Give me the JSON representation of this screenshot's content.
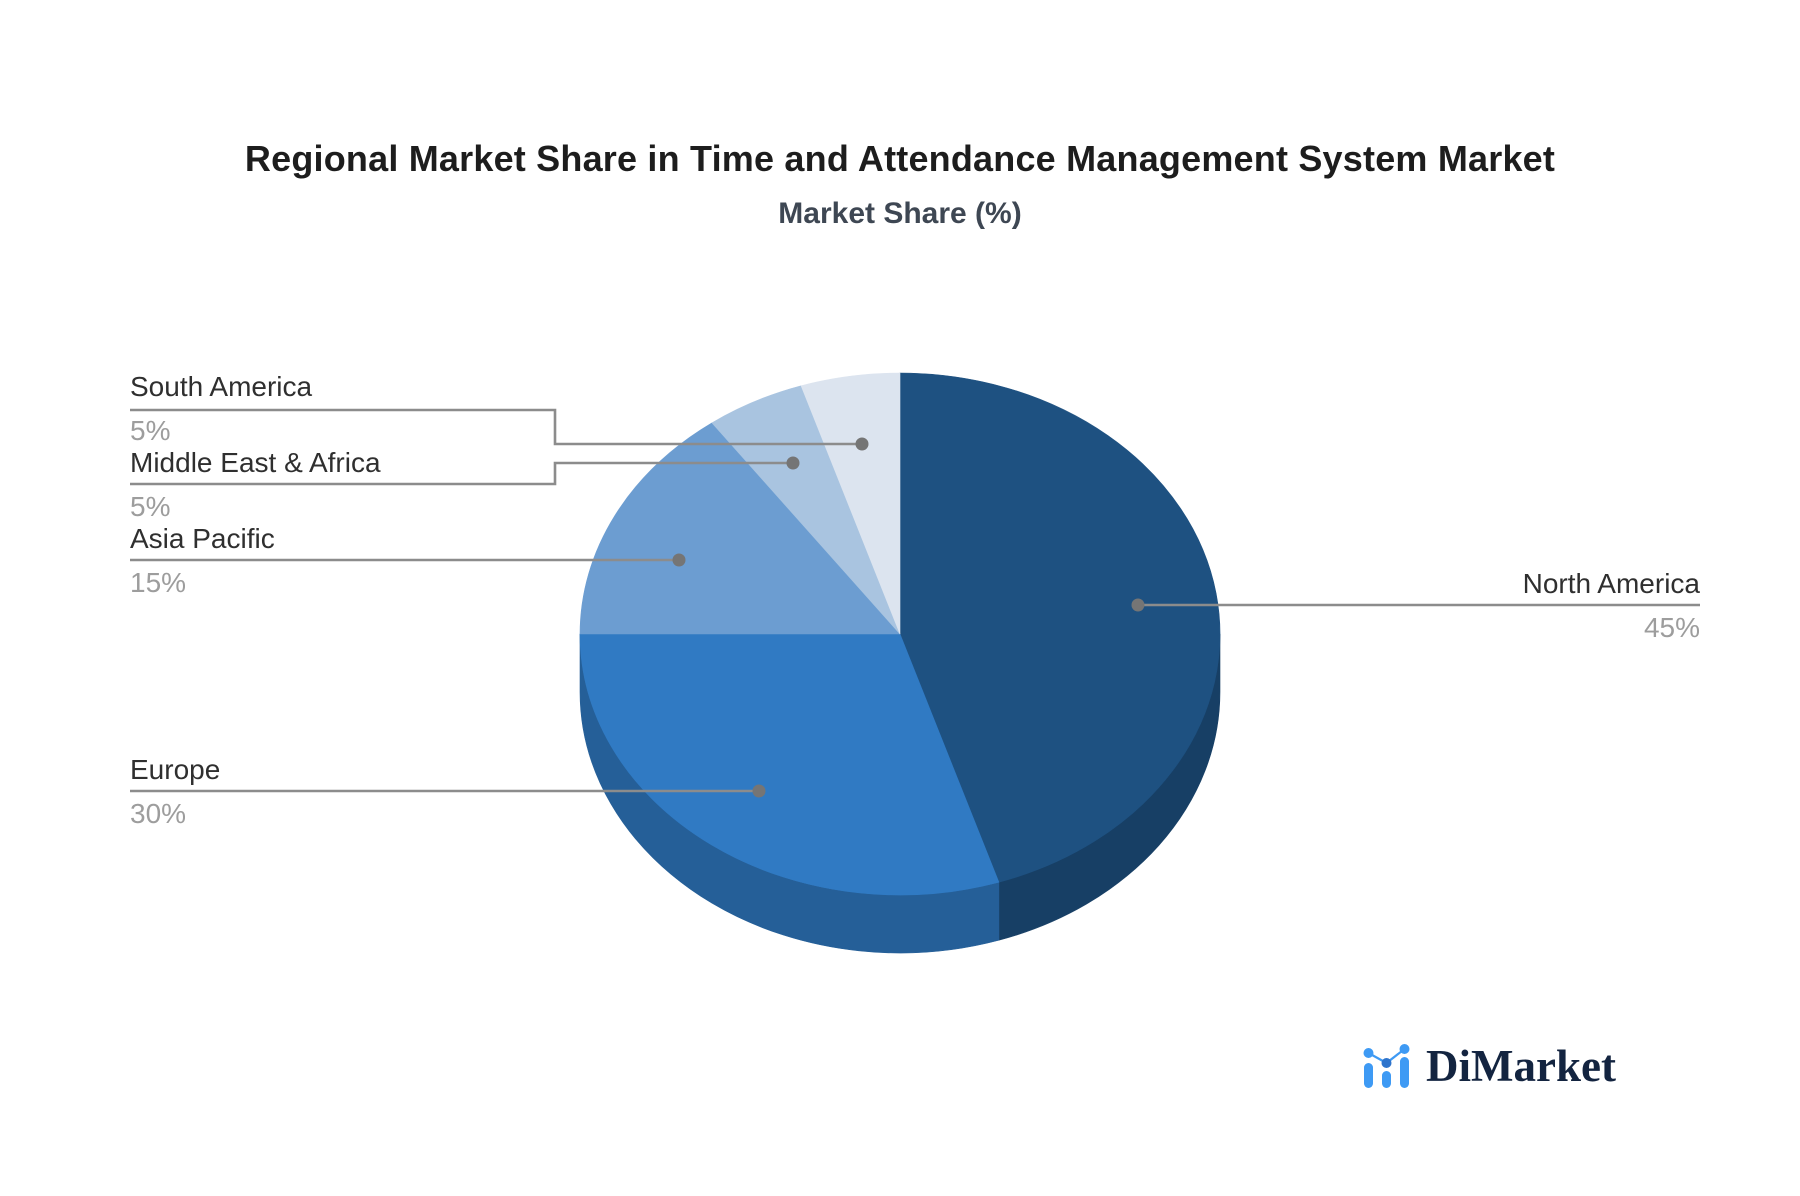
{
  "title": "Regional Market Share in Time and Attendance Management System Market",
  "subtitle": "Market Share (%)",
  "watermark": {
    "brand": "DiMarket",
    "icon": "bar-line-chart-icon"
  },
  "colors": {
    "background": "#FFFFFF",
    "title": "#1D1D1D",
    "subtitle": "#3E4753",
    "label_name": "#2F2F2F",
    "label_value": "#9D9D9D",
    "leader_line": "#8C8C8C",
    "leader_dot": "#757575",
    "slice_north_america": "#1E5181",
    "slice_europe": "#307AC3",
    "slice_asia_pacific": "#6C9DD1",
    "slice_middle_east_africa": "#A9C4E0",
    "slice_south_america": "#DCE4EF",
    "brand_blue": "#3E9AF4",
    "brand_blue_dark": "#2E74CC",
    "brand_navy": "#132440"
  },
  "chart_data": {
    "type": "pie",
    "style": "3d-ellipse",
    "title": "Regional Market Share in Time and Attendance Management System Market",
    "subtitle": "Market Share (%)",
    "unit": "%",
    "start_angle_deg": 0,
    "direction": "clockwise",
    "legend": "none",
    "labels": "leader-lines",
    "slices": [
      {
        "label": "North America",
        "value": 45,
        "display": "45%",
        "color": "#1E5181",
        "label_side": "right"
      },
      {
        "label": "Europe",
        "value": 30,
        "display": "30%",
        "color": "#307AC3",
        "label_side": "left"
      },
      {
        "label": "Asia Pacific",
        "value": 15,
        "display": "15%",
        "color": "#6C9DD1",
        "label_side": "left"
      },
      {
        "label": "Middle East & Africa",
        "value": 5,
        "display": "5%",
        "color": "#A9C4E0",
        "label_side": "left"
      },
      {
        "label": "South America",
        "value": 5,
        "display": "5%",
        "color": "#DCE4EF",
        "label_side": "left"
      }
    ]
  }
}
